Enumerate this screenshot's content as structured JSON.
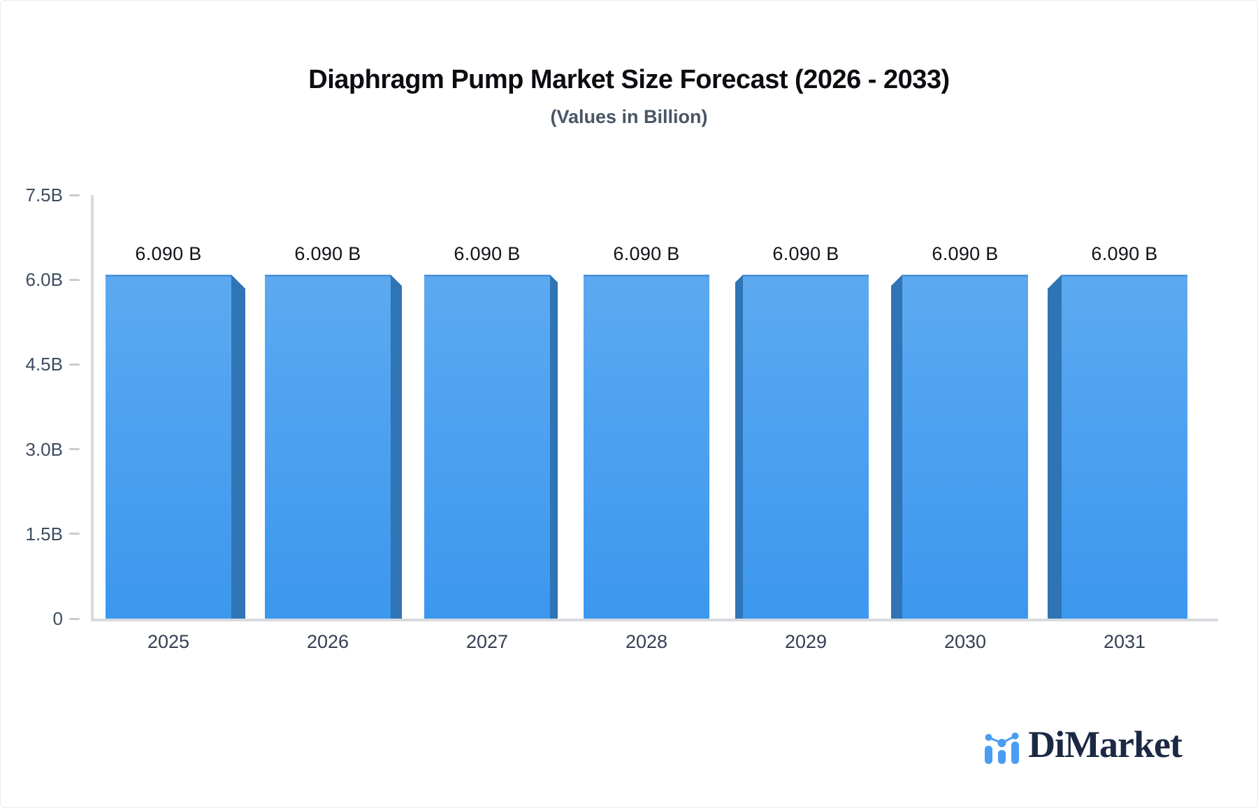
{
  "header": {
    "title": "Diaphragm Pump Market Size Forecast (2026 - 2033)",
    "subtitle": "(Values in Billion)"
  },
  "chart_data": {
    "type": "bar",
    "title": "Diaphragm Pump Market Size Forecast (2026 - 2033)",
    "subtitle": "(Values in Billion)",
    "categories": [
      "2025",
      "2026",
      "2027",
      "2028",
      "2029",
      "2030",
      "2031"
    ],
    "values": [
      6.09,
      6.09,
      6.09,
      6.09,
      6.09,
      6.09,
      6.09
    ],
    "value_labels": [
      "6.090 B",
      "6.090 B",
      "6.090 B",
      "6.090 B",
      "6.090 B",
      "6.090 B",
      "6.090 B"
    ],
    "xlabel": "",
    "ylabel": "",
    "ylim": [
      0,
      7.5
    ],
    "yticks": [
      {
        "label": "0",
        "value": 0
      },
      {
        "label": "1.5B",
        "value": 1.5
      },
      {
        "label": "3.0B",
        "value": 3.0
      },
      {
        "label": "4.5B",
        "value": 4.5
      },
      {
        "label": "6.0B",
        "value": 6.0
      },
      {
        "label": "7.5B",
        "value": 7.5
      }
    ],
    "grid": false,
    "legend": "none",
    "style_3d": true,
    "bar_color_top": "#5ca9f0",
    "bar_color_bottom": "#3c97ef",
    "bar_side_color": "#2f74b4"
  },
  "branding": {
    "logo_text": "DiMarket",
    "logo_icon": "bar-line-chart-icon",
    "logo_icon_color": "#4a9df2",
    "logo_text_color": "#1b2944"
  }
}
